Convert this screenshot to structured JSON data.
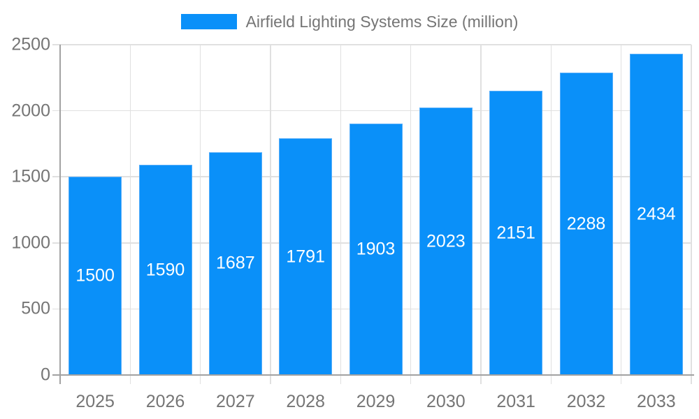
{
  "chart_data": {
    "type": "bar",
    "title": "Airfield Lighting Systems Size (million)",
    "legend_position": "top-center",
    "categories": [
      "2025",
      "2026",
      "2027",
      "2028",
      "2029",
      "2030",
      "2031",
      "2032",
      "2033"
    ],
    "series": [
      {
        "name": "Airfield Lighting Systems Size (million)",
        "values": [
          1500,
          1590,
          1687,
          1791,
          1903,
          2023,
          2151,
          2288,
          2434
        ]
      }
    ],
    "bar_labels": [
      1500,
      1590,
      1687,
      1791,
      1903,
      2023,
      2151,
      2288,
      2434
    ],
    "xlabel": "",
    "ylabel": "",
    "ylim": [
      0,
      2500
    ],
    "yticks": [
      0,
      500,
      1000,
      1500,
      2000,
      2500
    ],
    "grid": true,
    "colors": {
      "bar": "#0a90f9",
      "bar_edge": "#55adfa",
      "bar_label_text": "#ffffff",
      "axis_text": "#757575",
      "grid_line": "#e0e0e0",
      "axis_line": "#a2a2a2",
      "background": "#ffffff"
    }
  }
}
